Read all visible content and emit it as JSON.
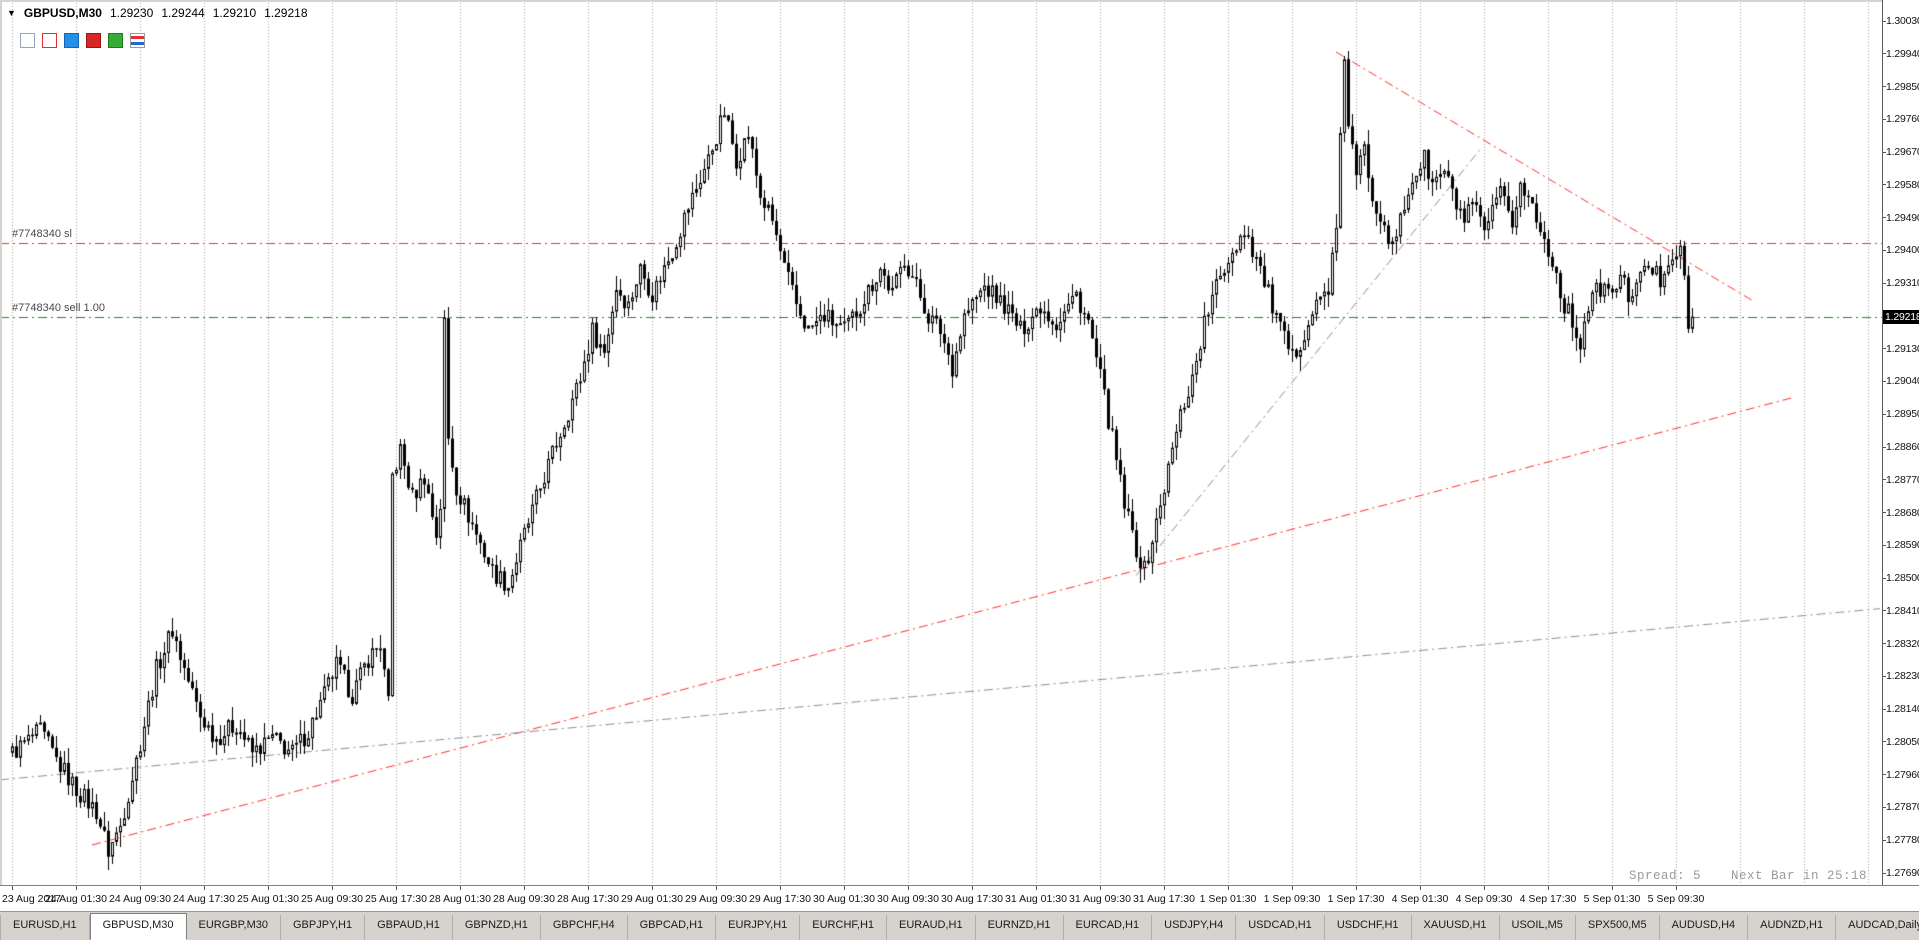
{
  "header": {
    "collapse_icon": "▼",
    "symbol_period": "GBPUSD,M30",
    "open": "1.29230",
    "high": "1.29244",
    "low": "1.29210",
    "close": "1.29218"
  },
  "swatches": [
    {
      "name": "swatch-hollow-gray",
      "fill": "#ffffff",
      "border": "#97a6b6"
    },
    {
      "name": "swatch-hollow-red",
      "fill": "#ffffff",
      "border": "#e03030"
    },
    {
      "name": "swatch-blue",
      "fill": "#2390e8",
      "border": "#1565b5"
    },
    {
      "name": "swatch-red",
      "fill": "#d82727",
      "border": "#9c1414"
    },
    {
      "name": "swatch-green",
      "fill": "#35ad35",
      "border": "#1d7a1d"
    },
    {
      "name": "swatch-red-blue-lines",
      "fill": "#ffffff",
      "border": "#9a9a9a",
      "stripes": [
        "#e03030",
        "#2565d8"
      ]
    }
  ],
  "order_lines": [
    {
      "label": "#7748340 sl",
      "price": 1.2942,
      "color": "#e03535",
      "style": "dashdot"
    },
    {
      "label": "#7748340 sell 1.00",
      "price": 1.29218,
      "color": "#1f8a1f",
      "style": "dashdot"
    }
  ],
  "status": {
    "spread_label": "Spread: 5",
    "next_bar_label": "Next Bar in 25:18"
  },
  "price_badge": "1.29218",
  "colors": {
    "candle": "#000000",
    "grid": "#a3a3a3",
    "background": "#ffffff",
    "badge_bg": "#000000",
    "trend_red": "#ff3030",
    "trend_gray": "#8f8f8f"
  },
  "chart_data": {
    "type": "candlestick",
    "symbol": "GBPUSD",
    "timeframe": "M30",
    "last_close": 1.29218,
    "y_axis": {
      "max": 1.3003,
      "min": 1.2769,
      "step": 0.0009,
      "labels": [
        "1.30030",
        "1.29940",
        "1.29850",
        "1.29760",
        "1.29670",
        "1.29580",
        "1.29490",
        "1.29400",
        "1.29310",
        "1.29220",
        "1.29130",
        "1.29040",
        "1.28950",
        "1.28860",
        "1.28770",
        "1.28680",
        "1.28590",
        "1.28500",
        "1.28410",
        "1.28320",
        "1.28230",
        "1.28140",
        "1.28050",
        "1.27960",
        "1.27870",
        "1.27780",
        "1.27690"
      ]
    },
    "x_axis": {
      "bars_per_tick": 16,
      "labels": [
        "23 Aug 2017",
        "24 Aug 01:30",
        "24 Aug 09:30",
        "24 Aug 17:30",
        "25 Aug 01:30",
        "25 Aug 09:30",
        "25 Aug 17:30",
        "28 Aug 01:30",
        "28 Aug 09:30",
        "28 Aug 17:30",
        "29 Aug 01:30",
        "29 Aug 09:30",
        "29 Aug 17:30",
        "30 Aug 01:30",
        "30 Aug 09:30",
        "30 Aug 17:30",
        "31 Aug 01:30",
        "31 Aug 09:30",
        "31 Aug 17:30",
        "1 Sep 01:30",
        "1 Sep 09:30",
        "1 Sep 17:30",
        "4 Sep 01:30",
        "4 Sep 09:30",
        "4 Sep 17:30",
        "5 Sep 01:30",
        "5 Sep 09:30"
      ]
    },
    "anchors": [
      [
        0,
        1.2802
      ],
      [
        7,
        1.2808
      ],
      [
        11,
        1.28
      ],
      [
        16,
        1.2792
      ],
      [
        21,
        1.2786
      ],
      [
        24,
        1.2775
      ],
      [
        27,
        1.2782
      ],
      [
        31,
        1.28
      ],
      [
        36,
        1.2825
      ],
      [
        40,
        1.2836
      ],
      [
        43,
        1.2825
      ],
      [
        47,
        1.2812
      ],
      [
        51,
        1.2806
      ],
      [
        56,
        1.281
      ],
      [
        60,
        1.2802
      ],
      [
        65,
        1.2806
      ],
      [
        70,
        1.2802
      ],
      [
        74,
        1.2808
      ],
      [
        78,
        1.2818
      ],
      [
        81,
        1.2826
      ],
      [
        85,
        1.2818
      ],
      [
        89,
        1.2828
      ],
      [
        92,
        1.2832
      ],
      [
        94,
        1.2815
      ],
      [
        95,
        1.2878
      ],
      [
        97,
        1.2885
      ],
      [
        100,
        1.2872
      ],
      [
        103,
        1.2878
      ],
      [
        106,
        1.2862
      ],
      [
        107,
        1.287
      ],
      [
        108,
        1.292
      ],
      [
        109,
        1.2888
      ],
      [
        111,
        1.2875
      ],
      [
        116,
        1.2862
      ],
      [
        120,
        1.2852
      ],
      [
        124,
        1.2848
      ],
      [
        128,
        1.2862
      ],
      [
        133,
        1.2878
      ],
      [
        137,
        1.289
      ],
      [
        142,
        1.2905
      ],
      [
        145,
        1.2918
      ],
      [
        148,
        1.2912
      ],
      [
        151,
        1.293
      ],
      [
        154,
        1.2925
      ],
      [
        157,
        1.2935
      ],
      [
        160,
        1.2928
      ],
      [
        165,
        1.294
      ],
      [
        169,
        1.2952
      ],
      [
        174,
        1.2965
      ],
      [
        178,
        1.2978
      ],
      [
        181,
        1.2965
      ],
      [
        184,
        1.2972
      ],
      [
        187,
        1.2955
      ],
      [
        190,
        1.2948
      ],
      [
        193,
        1.2935
      ],
      [
        196,
        1.2925
      ],
      [
        199,
        1.2918
      ],
      [
        203,
        1.2922
      ],
      [
        208,
        1.2918
      ],
      [
        212,
        1.2925
      ],
      [
        217,
        1.2935
      ],
      [
        220,
        1.2928
      ],
      [
        223,
        1.2938
      ],
      [
        226,
        1.293
      ],
      [
        229,
        1.2922
      ],
      [
        232,
        1.2918
      ],
      [
        235,
        1.2908
      ],
      [
        238,
        1.2922
      ],
      [
        243,
        1.293
      ],
      [
        248,
        1.2925
      ],
      [
        252,
        1.2918
      ],
      [
        257,
        1.2925
      ],
      [
        261,
        1.292
      ],
      [
        266,
        1.2928
      ],
      [
        269,
        1.292
      ],
      [
        272,
        1.2905
      ],
      [
        275,
        1.2888
      ],
      [
        278,
        1.287
      ],
      [
        281,
        1.2858
      ],
      [
        283,
        1.2852
      ],
      [
        286,
        1.2865
      ],
      [
        289,
        1.288
      ],
      [
        292,
        1.2895
      ],
      [
        295,
        1.2905
      ],
      [
        298,
        1.292
      ],
      [
        301,
        1.293
      ],
      [
        304,
        1.2938
      ],
      [
        308,
        1.2946
      ],
      [
        311,
        1.2938
      ],
      [
        314,
        1.2928
      ],
      [
        317,
        1.2918
      ],
      [
        320,
        1.291
      ],
      [
        323,
        1.2918
      ],
      [
        326,
        1.2925
      ],
      [
        329,
        1.293
      ],
      [
        331,
        1.2945
      ],
      [
        333,
        1.2994
      ],
      [
        334,
        1.2975
      ],
      [
        336,
        1.296
      ],
      [
        338,
        1.2968
      ],
      [
        340,
        1.2955
      ],
      [
        343,
        1.2948
      ],
      [
        345,
        1.294
      ],
      [
        348,
        1.2952
      ],
      [
        350,
        1.296
      ],
      [
        353,
        1.2965
      ],
      [
        355,
        1.2958
      ],
      [
        358,
        1.2962
      ],
      [
        360,
        1.2955
      ],
      [
        363,
        1.2948
      ],
      [
        365,
        1.2952
      ],
      [
        368,
        1.2945
      ],
      [
        370,
        1.295
      ],
      [
        372,
        1.2955
      ],
      [
        375,
        1.2948
      ],
      [
        377,
        1.2958
      ],
      [
        380,
        1.2952
      ],
      [
        382,
        1.2945
      ],
      [
        385,
        1.2938
      ],
      [
        387,
        1.2928
      ],
      [
        390,
        1.292
      ],
      [
        392,
        1.2915
      ],
      [
        394,
        1.2925
      ],
      [
        397,
        1.293
      ],
      [
        399,
        1.2928
      ],
      [
        402,
        1.2932
      ],
      [
        404,
        1.2928
      ],
      [
        407,
        1.2932
      ],
      [
        409,
        1.2936
      ],
      [
        412,
        1.2932
      ],
      [
        414,
        1.2938
      ],
      [
        417,
        1.2941
      ],
      [
        419,
        1.292
      ],
      [
        420,
        1.29218
      ]
    ],
    "trendlines": [
      {
        "name": "resistance-descending",
        "color": "#ff3030",
        "from": [
          331,
          1.29945
        ],
        "to": [
          435,
          1.29263
        ]
      },
      {
        "name": "support-ascending-long",
        "color": "#ff3030",
        "from": [
          20,
          1.27767
        ],
        "to": [
          445,
          1.28995
        ]
      },
      {
        "name": "gray-steep-ascending",
        "color": "#8f8f8f",
        "from": [
          281,
          1.28507
        ],
        "to": [
          367,
          1.29677
        ]
      },
      {
        "name": "gray-shallow-ascending",
        "color": "#8f8f8f",
        "from": [
          -3,
          1.27946
        ],
        "to": [
          467,
          1.28416
        ]
      }
    ]
  },
  "tabs": [
    {
      "label": "EURUSD,H1",
      "active": false
    },
    {
      "label": "GBPUSD,M30",
      "active": true
    },
    {
      "label": "EURGBP,M30",
      "active": false
    },
    {
      "label": "GBPJPY,H1",
      "active": false
    },
    {
      "label": "GBPAUD,H1",
      "active": false
    },
    {
      "label": "GBPNZD,H1",
      "active": false
    },
    {
      "label": "GBPCHF,H4",
      "active": false
    },
    {
      "label": "GBPCAD,H1",
      "active": false
    },
    {
      "label": "EURJPY,H1",
      "active": false
    },
    {
      "label": "EURCHF,H1",
      "active": false
    },
    {
      "label": "EURAUD,H1",
      "active": false
    },
    {
      "label": "EURNZD,H1",
      "active": false
    },
    {
      "label": "EURCAD,H1",
      "active": false
    },
    {
      "label": "USDJPY,H4",
      "active": false
    },
    {
      "label": "USDCAD,H1",
      "active": false
    },
    {
      "label": "USDCHF,H1",
      "active": false
    },
    {
      "label": "XAUUSD,H1",
      "active": false
    },
    {
      "label": "USOIL,M5",
      "active": false
    },
    {
      "label": "SPX500,M5",
      "active": false
    },
    {
      "label": "AUDUSD,H4",
      "active": false
    },
    {
      "label": "AUDNZD,H1",
      "active": false
    },
    {
      "label": "AUDCAD,Daily",
      "active": false
    }
  ]
}
